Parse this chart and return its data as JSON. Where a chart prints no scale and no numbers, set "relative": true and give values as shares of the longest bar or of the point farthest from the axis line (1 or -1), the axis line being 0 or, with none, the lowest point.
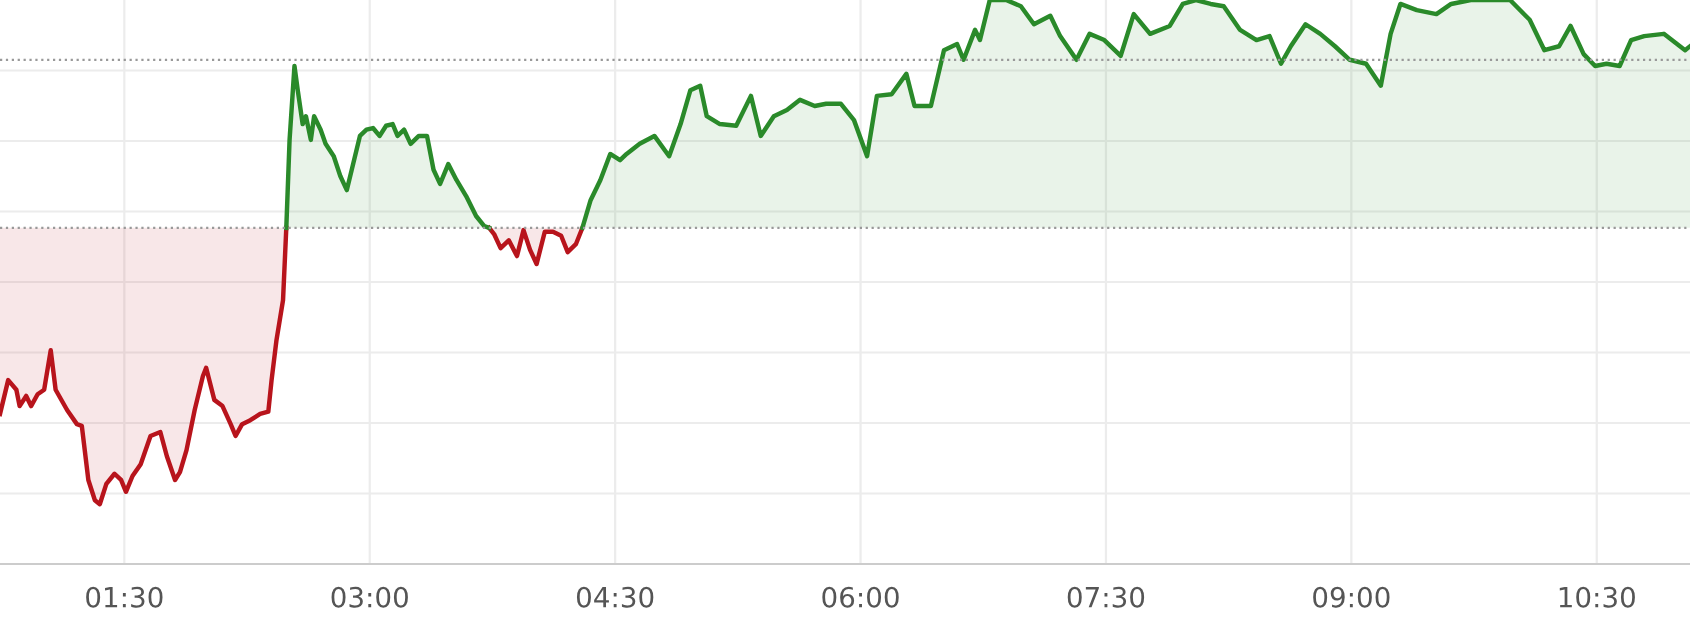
{
  "chart_data": {
    "type": "line",
    "relative": true,
    "marker": "none",
    "xlim": [
      0.74,
      11.07
    ],
    "xticks": [
      {
        "value": 1.5,
        "label": "01:30"
      },
      {
        "value": 3,
        "label": "03:00"
      },
      {
        "value": 4.5,
        "label": "04:30"
      },
      {
        "value": 6,
        "label": "06:00"
      },
      {
        "value": 7.5,
        "label": "07:30"
      },
      {
        "value": 9,
        "label": "09:00"
      },
      {
        "value": 10.5,
        "label": "10:30"
      }
    ],
    "tick_labels": "x",
    "grid": true,
    "legend": false,
    "ref_lines": [
      {
        "axis": "y",
        "value": 0.596,
        "color": "#999999",
        "line_style": "dotted"
      },
      {
        "axis": "y",
        "value": 0.894,
        "color": "#999999",
        "line_style": "dotted"
      }
    ],
    "series": [
      {
        "color": "#b8141c",
        "x": [
          0.74,
          0.79,
          0.84,
          0.86,
          0.9,
          0.93,
          0.97,
          1.01,
          1.05,
          1.08,
          1.15,
          1.21,
          1.24,
          1.28,
          1.32,
          1.35,
          1.39,
          1.44,
          1.48,
          1.51,
          1.55,
          1.6,
          1.66,
          1.72,
          1.76,
          1.81,
          1.84,
          1.88,
          1.93,
          1.98,
          2.0,
          2.05,
          2.1,
          2.15,
          2.18,
          2.22,
          2.27,
          2.33,
          2.38,
          2.4,
          2.43,
          2.47,
          2.49,
          3.0,
          3.73,
          3.76,
          3.8,
          3.85,
          3.9,
          3.94,
          3.98,
          4.02,
          4.07,
          4.12,
          4.17,
          4.21,
          4.26,
          4.3
        ],
        "values": [
          0.266,
          0.326,
          0.309,
          0.28,
          0.298,
          0.28,
          0.301,
          0.309,
          0.379,
          0.309,
          0.273,
          0.248,
          0.245,
          0.149,
          0.113,
          0.106,
          0.142,
          0.16,
          0.149,
          0.128,
          0.156,
          0.177,
          0.227,
          0.234,
          0.191,
          0.149,
          0.163,
          0.202,
          0.273,
          0.333,
          0.348,
          0.291,
          0.28,
          0.248,
          0.227,
          0.248,
          0.255,
          0.266,
          0.27,
          0.326,
          0.397,
          0.468,
          0.596,
          null,
          0.596,
          0.585,
          0.56,
          0.574,
          0.546,
          0.592,
          0.557,
          0.532,
          0.589,
          0.589,
          0.582,
          0.553,
          0.567,
          0.596
        ]
      },
      {
        "color": "#2a8a2a",
        "x": [
          2.49,
          2.51,
          2.54,
          2.56,
          2.59,
          2.61,
          2.64,
          2.66,
          2.7,
          2.73,
          2.78,
          2.82,
          2.86,
          2.89,
          2.94,
          2.98,
          3.02,
          3.06,
          3.1,
          3.14,
          3.17,
          3.21,
          3.25,
          3.3,
          3.35,
          3.39,
          3.43,
          3.48,
          3.53,
          3.59,
          3.65,
          3.7,
          3.73,
          4.0,
          4.3,
          4.35,
          4.41,
          4.47,
          4.53,
          4.57,
          4.65,
          4.74,
          4.83,
          4.9,
          4.96,
          5.02,
          5.06,
          5.14,
          5.24,
          5.33,
          5.39,
          5.47,
          5.55,
          5.63,
          5.72,
          5.79,
          5.88,
          5.96,
          6.04,
          6.1,
          6.19,
          6.28,
          6.33,
          6.43,
          6.51,
          6.59,
          6.63,
          6.7,
          6.73,
          6.79,
          6.89,
          6.98,
          7.06,
          7.16,
          7.22,
          7.32,
          7.4,
          7.49,
          7.59,
          7.67,
          7.77,
          7.89,
          7.97,
          8.05,
          8.14,
          8.22,
          8.32,
          8.42,
          8.5,
          8.57,
          8.63,
          8.72,
          8.81,
          8.9,
          8.99,
          9.09,
          9.18,
          9.24,
          9.3,
          9.4,
          9.52,
          9.61,
          9.73,
          9.85,
          9.97,
          10.09,
          10.18,
          10.27,
          10.34,
          10.42,
          10.49,
          10.56,
          10.64,
          10.71,
          10.79,
          10.91,
          11.04,
          11.07
        ],
        "values": [
          0.596,
          0.752,
          0.883,
          0.84,
          0.78,
          0.794,
          0.752,
          0.794,
          0.77,
          0.745,
          0.723,
          0.688,
          0.663,
          0.699,
          0.759,
          0.77,
          0.773,
          0.759,
          0.777,
          0.78,
          0.759,
          0.77,
          0.745,
          0.759,
          0.759,
          0.699,
          0.674,
          0.709,
          0.681,
          0.652,
          0.617,
          0.599,
          0.596,
          null,
          0.596,
          0.645,
          0.681,
          0.727,
          0.716,
          0.727,
          0.745,
          0.759,
          0.723,
          0.78,
          0.84,
          0.848,
          0.794,
          0.78,
          0.777,
          0.83,
          0.759,
          0.794,
          0.805,
          0.823,
          0.812,
          0.816,
          0.816,
          0.787,
          0.723,
          0.83,
          0.833,
          0.869,
          0.812,
          0.812,
          0.911,
          0.922,
          0.894,
          0.947,
          0.929,
          1,
          1,
          0.989,
          0.957,
          0.972,
          0.936,
          0.894,
          0.94,
          0.929,
          0.901,
          0.975,
          0.94,
          0.954,
          0.993,
          1,
          0.993,
          0.989,
          0.947,
          0.929,
          0.936,
          0.887,
          0.918,
          0.957,
          0.94,
          0.918,
          0.894,
          0.887,
          0.848,
          0.94,
          0.993,
          0.982,
          0.975,
          0.993,
          1,
          1,
          1,
          0.965,
          0.911,
          0.918,
          0.954,
          0.904,
          0.883,
          0.887,
          0.883,
          0.929,
          0.936,
          0.94,
          0.911,
          0.918
        ]
      }
    ]
  }
}
